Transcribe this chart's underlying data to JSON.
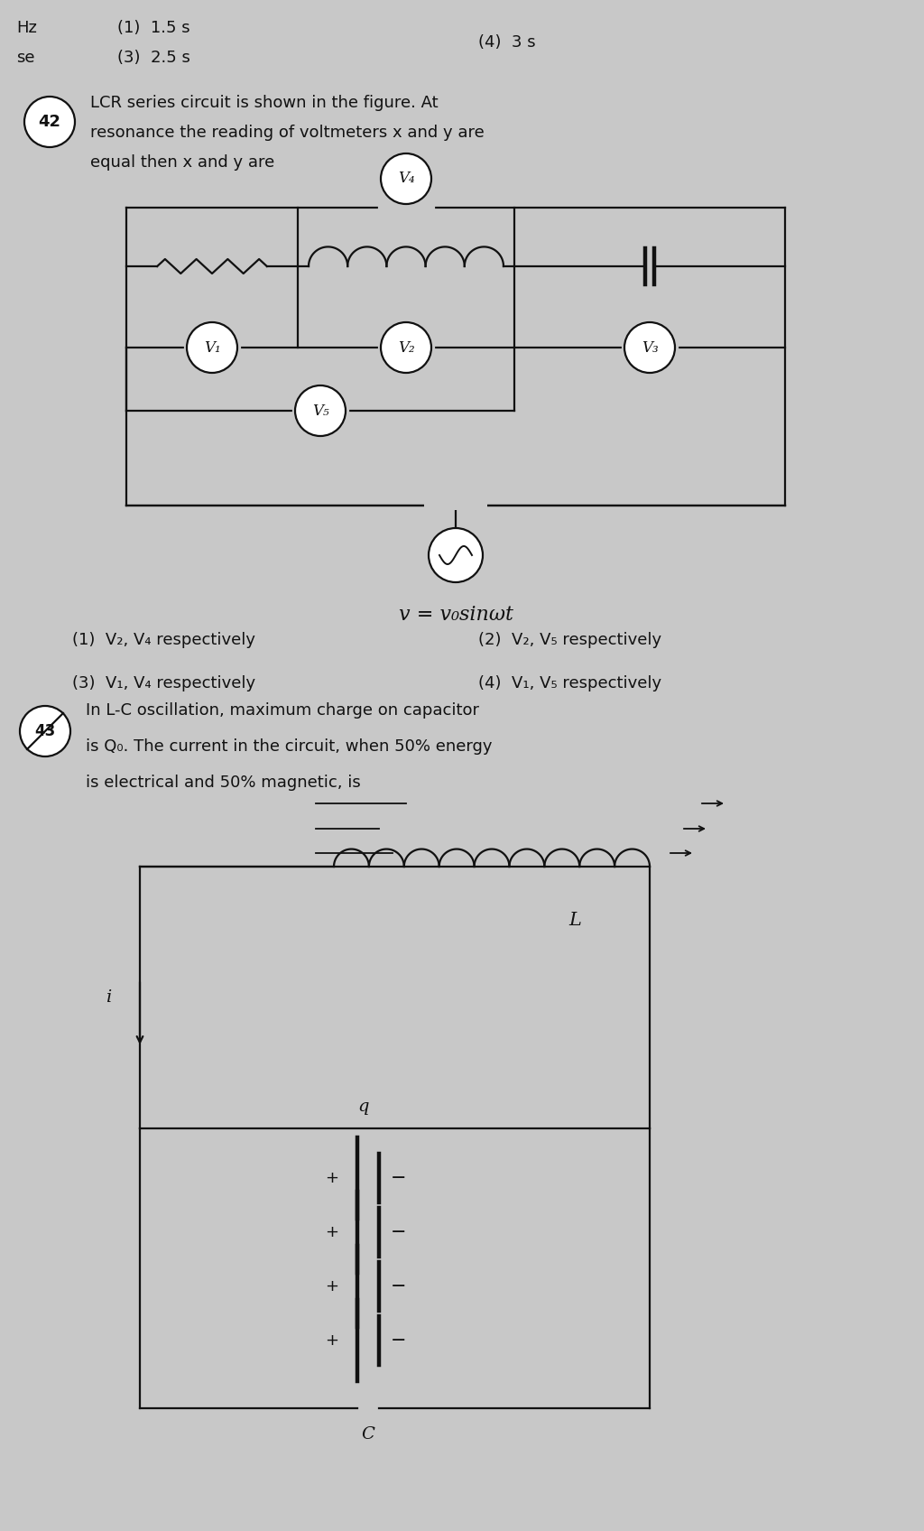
{
  "bg_color": "#c8c8c8",
  "text_color": "#111111",
  "fs_base": 13,
  "lw": 1.6,
  "top_text": [
    "Hz",
    "se"
  ],
  "top_options": [
    "(1)  1.5 s",
    "(3)  2.5 s",
    "(4)  3 s"
  ],
  "q42_label": "42",
  "q42_lines": [
    "LCR series circuit is shown in the figure. At",
    "resonance the reading of voltmeters x and y are",
    "equal then x and y are"
  ],
  "formula": "v = v₀sinωt",
  "options_42": [
    "(1)  V₂, V₄ respectively",
    "(2)  V₂, V₅ respectively",
    "(3)  V₁, V₄ respectively",
    "(4)  V₁, V₅ respectively"
  ],
  "q43_label": "43",
  "q43_lines": [
    "In L-C oscillation, maximum charge on capacitor",
    "is Q₀. The current in the circuit, when 50% energy",
    "is electrical and 50% magnetic, is"
  ],
  "L_label": "L",
  "i_label": "i",
  "q_label": "q",
  "C_label": "C"
}
